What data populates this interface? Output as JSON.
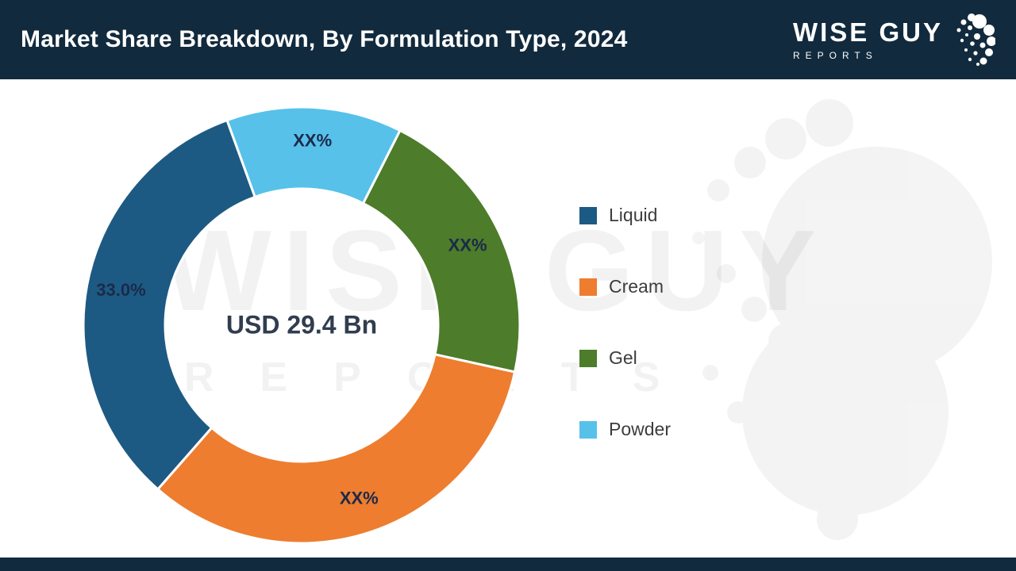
{
  "header": {
    "title": "Market Share Breakdown, By Formulation Type, 2024",
    "logo": {
      "wordmark": "WISE GUY",
      "subtext": "REPORTS"
    },
    "bg_color": "#122a3d"
  },
  "watermark": {
    "line1": "WISE GUY",
    "line2": "REPORTS"
  },
  "chart_data": {
    "type": "pie",
    "donut": true,
    "title": "Market Share Breakdown, By Formulation Type, 2024",
    "center_label": "USD 29.4 Bn",
    "start_angle_deg": -20,
    "label_color": "#1b2a4a",
    "segments": [
      {
        "label": "Powder",
        "value_pct": 13,
        "display": "XX%",
        "color": "#57c1ea"
      },
      {
        "label": "Gel",
        "value_pct": 21,
        "display": "XX%",
        "color": "#4d7c2a"
      },
      {
        "label": "Cream",
        "value_pct": 33,
        "display": "XX%",
        "color": "#ee7d2f"
      },
      {
        "label": "Liquid",
        "value_pct": 33,
        "display": "33.0%",
        "color": "#1d5a83"
      }
    ],
    "legend_order": [
      3,
      2,
      1,
      0
    ],
    "legend_position": "right"
  }
}
